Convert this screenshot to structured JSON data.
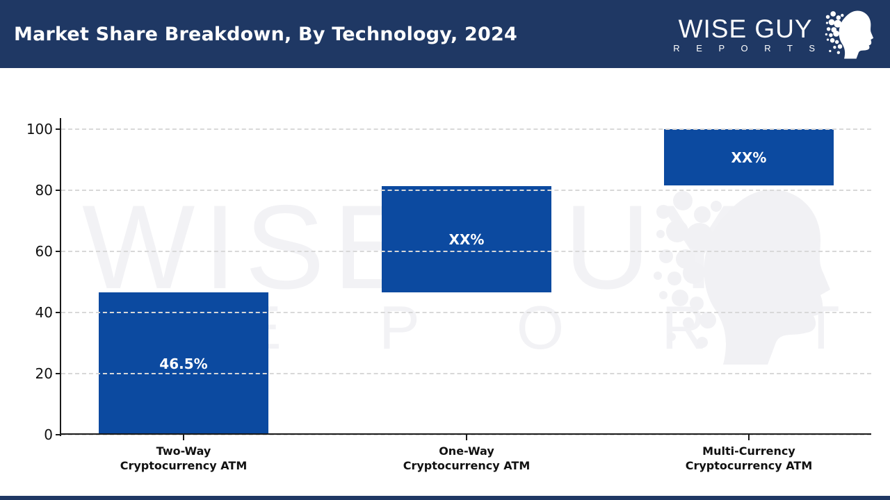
{
  "header": {
    "title": "Market Share Breakdown, By Technology, 2024",
    "logo_line1": "WISE GUY",
    "logo_line2": "R E P O R T S"
  },
  "watermark": {
    "line1": "WISE GUY",
    "line2": "R E P O R T S"
  },
  "colors": {
    "header_bg": "#1f3864",
    "bar": "#0c4aa0",
    "gridline": "#d8d8d8",
    "axis": "#1a1a1a",
    "bar_label_text": "#ffffff",
    "watermark_text": "#f2f2f5",
    "footer_bar": "#1f3864"
  },
  "chart_data": {
    "type": "bar",
    "subtype": "waterfall-stacked-percentage",
    "title": "Market Share Breakdown, By Technology, 2024",
    "categories": [
      [
        "Two-Way",
        "Cryptocurrency ATM"
      ],
      [
        "One-Way",
        "Cryptocurrency ATM"
      ],
      [
        "Multi-Currency",
        "Cryptocurrency ATM"
      ]
    ],
    "segments": [
      {
        "start": 0,
        "end": 46.5,
        "label": "46.5%"
      },
      {
        "start": 46.5,
        "end": 81.4,
        "label": "XX%"
      },
      {
        "start": 81.5,
        "end": 100,
        "label": "XX%"
      }
    ],
    "bar_labels": [
      "46.5%",
      "XX%",
      "XX%"
    ],
    "xlabel": "",
    "ylabel": "",
    "ylim": [
      0,
      103.6
    ],
    "yticks": [
      0,
      20,
      40,
      60,
      80,
      100
    ],
    "grid": "horizontal-dashed",
    "legend": "none"
  }
}
